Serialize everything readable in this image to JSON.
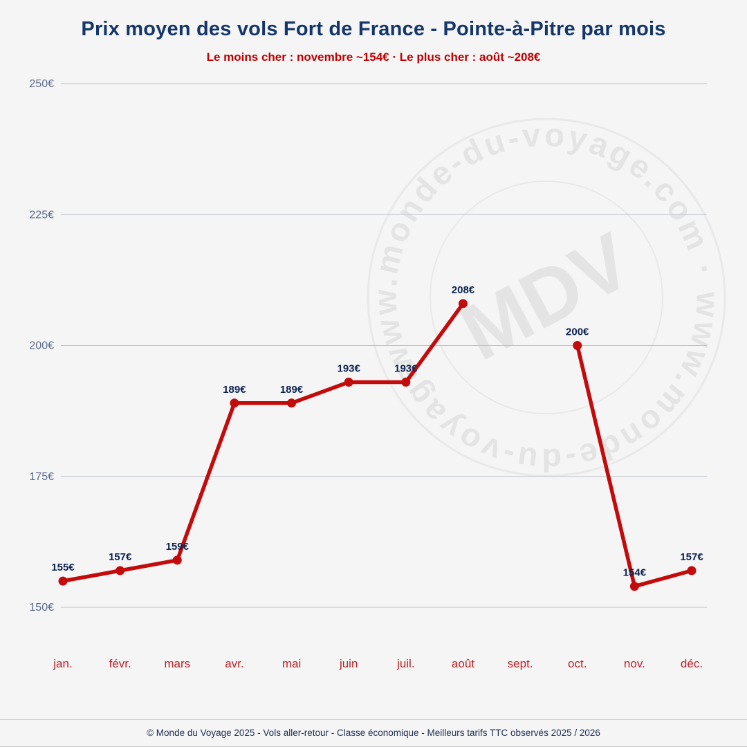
{
  "header": {
    "title": "Prix moyen des vols Fort de France - Pointe-à-Pitre par mois",
    "subtitle": "Le moins cher : novembre ~154€ · Le plus cher : août ~208€"
  },
  "watermark": {
    "url": "www.monde-du-voyage.com",
    "initials": "MDV"
  },
  "chart_data": {
    "type": "line",
    "title": "Prix moyen des vols Fort de France - Pointe-à-Pitre par mois",
    "categories": [
      "jan.",
      "févr.",
      "mars",
      "avr.",
      "mai",
      "juin",
      "juil.",
      "août",
      "sept.",
      "oct.",
      "nov.",
      "déc."
    ],
    "values": [
      155,
      157,
      159,
      189,
      189,
      193,
      193,
      208,
      null,
      200,
      154,
      157
    ],
    "unit": "€",
    "ylim": [
      150,
      250
    ],
    "yticks": [
      150,
      175,
      200,
      225,
      250
    ],
    "grid": true,
    "legend": "none",
    "line_color": "#c30b0b",
    "point_color": "#c30b0b",
    "value_label_color": "#0d2250",
    "axis_label_color": "#5b6b8f",
    "month_label_color": "#bb2127",
    "grid_color": "#bcc2cf"
  },
  "footer": {
    "text": "© Monde du Voyage 2025 - Vols aller-retour - Classe économique - Meilleurs tarifs TTC observés 2025 / 2026"
  }
}
